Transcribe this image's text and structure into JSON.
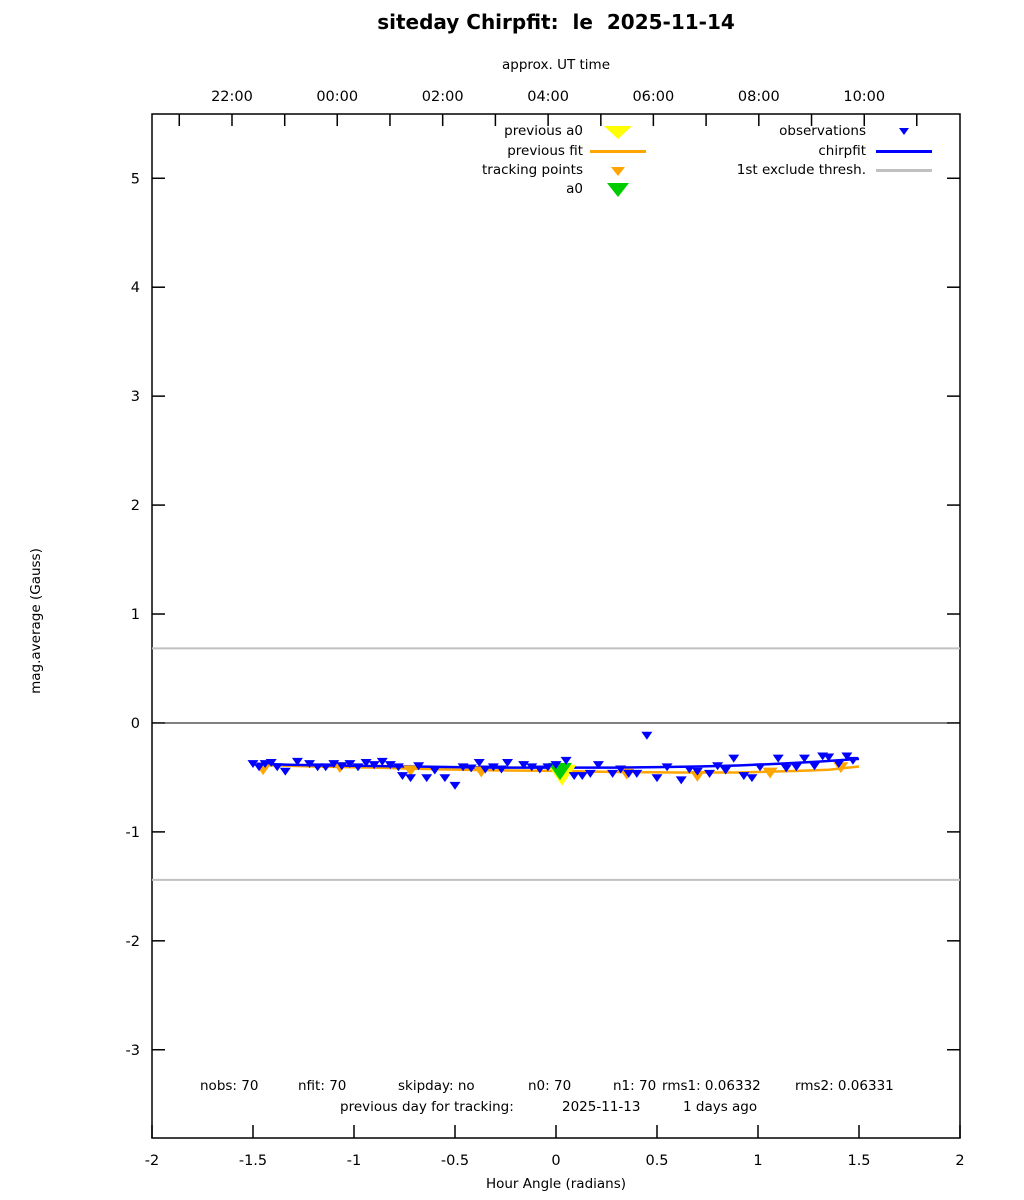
{
  "chart_data": {
    "type": "scatter",
    "title": "siteday Chirpfit:  le  2025-11-14",
    "xlabel": "Hour Angle (radians)",
    "ylabel": "mag.average (Gauss)",
    "x2label": "approx. UT time",
    "xlim": [
      -2,
      2
    ],
    "ylim": [
      -3.81,
      5.59
    ],
    "grid": false,
    "xticks": [
      {
        "v": -2,
        "label": "-2"
      },
      {
        "v": -1.5,
        "label": "-1.5"
      },
      {
        "v": -1,
        "label": "-1"
      },
      {
        "v": -0.5,
        "label": "-0.5"
      },
      {
        "v": 0,
        "label": "0"
      },
      {
        "v": 0.5,
        "label": "0.5"
      },
      {
        "v": 1,
        "label": "1"
      },
      {
        "v": 1.5,
        "label": "1.5"
      },
      {
        "v": 2,
        "label": "2"
      }
    ],
    "yticks": [
      {
        "v": 5,
        "label": "5"
      },
      {
        "v": 4,
        "label": "4"
      },
      {
        "v": 3,
        "label": "3"
      },
      {
        "v": 2,
        "label": "2"
      },
      {
        "v": 1,
        "label": "1"
      },
      {
        "v": 0,
        "label": "0"
      },
      {
        "v": -1,
        "label": "-1"
      },
      {
        "v": -2,
        "label": "-2"
      },
      {
        "v": -3,
        "label": "-3"
      }
    ],
    "x2ticks": [
      {
        "ha": -1.865,
        "label": ""
      },
      {
        "ha": -1.604,
        "label": "22:00"
      },
      {
        "ha": -1.343,
        "label": ""
      },
      {
        "ha": -1.083,
        "label": "00:00"
      },
      {
        "ha": -0.822,
        "label": ""
      },
      {
        "ha": -0.561,
        "label": "02:00"
      },
      {
        "ha": -0.3,
        "label": ""
      },
      {
        "ha": -0.039,
        "label": "04:00"
      },
      {
        "ha": 0.222,
        "label": ""
      },
      {
        "ha": 0.482,
        "label": "06:00"
      },
      {
        "ha": 0.743,
        "label": ""
      },
      {
        "ha": 1.004,
        "label": "08:00"
      },
      {
        "ha": 1.265,
        "label": ""
      },
      {
        "ha": 1.526,
        "label": "10:00"
      },
      {
        "ha": 1.786,
        "label": ""
      }
    ],
    "series": [
      {
        "name": "1st exclude thresh.",
        "type": "hline",
        "color": "#c0c0c0",
        "width": 2,
        "y": [
          0.685,
          -1.44
        ]
      },
      {
        "name": "zero axis",
        "type": "hline",
        "color": "#000000",
        "width": 1,
        "y": [
          0
        ]
      },
      {
        "name": "previous fit",
        "type": "line",
        "color": "#ffa500",
        "width": 2.5,
        "points": [
          [
            -1.48,
            -0.385
          ],
          [
            -1.2,
            -0.4
          ],
          [
            -0.9,
            -0.41
          ],
          [
            -0.6,
            -0.425
          ],
          [
            -0.3,
            -0.435
          ],
          [
            0,
            -0.44
          ],
          [
            0.3,
            -0.45
          ],
          [
            0.6,
            -0.455
          ],
          [
            0.9,
            -0.455
          ],
          [
            1.2,
            -0.44
          ],
          [
            1.35,
            -0.43
          ],
          [
            1.5,
            -0.4
          ]
        ]
      },
      {
        "name": "chirpfit",
        "type": "line",
        "color": "#0000ff",
        "width": 2.5,
        "points": [
          [
            -1.48,
            -0.375
          ],
          [
            -1.3,
            -0.385
          ],
          [
            -1.1,
            -0.39
          ],
          [
            -0.9,
            -0.395
          ],
          [
            -0.7,
            -0.4
          ],
          [
            -0.5,
            -0.405
          ],
          [
            -0.3,
            -0.41
          ],
          [
            -0.1,
            -0.41
          ],
          [
            0.1,
            -0.41
          ],
          [
            0.3,
            -0.41
          ],
          [
            0.5,
            -0.405
          ],
          [
            0.7,
            -0.4
          ],
          [
            0.9,
            -0.39
          ],
          [
            1.1,
            -0.375
          ],
          [
            1.3,
            -0.355
          ],
          [
            1.5,
            -0.33
          ]
        ]
      },
      {
        "name": "previous a0",
        "type": "scatter",
        "marker": "triangle-down",
        "color": "#ffff00",
        "size": 29,
        "points": [
          [
            0.03,
            -0.46
          ]
        ]
      },
      {
        "name": "a0",
        "type": "scatter",
        "marker": "triangle-down",
        "color": "#00cc00",
        "size": 24,
        "points": [
          [
            0.02,
            -0.43
          ]
        ]
      },
      {
        "name": "tracking points",
        "type": "scatter",
        "marker": "triangle-down",
        "color": "#ffa500",
        "size": 15,
        "points": [
          [
            -1.45,
            -0.42
          ],
          [
            -1.07,
            -0.4
          ],
          [
            -0.72,
            -0.43
          ],
          [
            -0.37,
            -0.44
          ],
          [
            0.35,
            -0.46
          ],
          [
            0.7,
            -0.48
          ],
          [
            1.06,
            -0.45
          ],
          [
            1.41,
            -0.4
          ]
        ]
      },
      {
        "name": "observations",
        "type": "scatter",
        "marker": "triangle-down",
        "color": "#0000ff",
        "size": 11,
        "points": [
          [
            -1.5,
            -0.37
          ],
          [
            -1.47,
            -0.4
          ],
          [
            -1.44,
            -0.37
          ],
          [
            -1.41,
            -0.36
          ],
          [
            -1.38,
            -0.4
          ],
          [
            -1.34,
            -0.44
          ],
          [
            -1.28,
            -0.35
          ],
          [
            -1.22,
            -0.37
          ],
          [
            -1.18,
            -0.4
          ],
          [
            -1.14,
            -0.4
          ],
          [
            -1.1,
            -0.37
          ],
          [
            -1.06,
            -0.39
          ],
          [
            -1.02,
            -0.37
          ],
          [
            -0.98,
            -0.4
          ],
          [
            -0.94,
            -0.36
          ],
          [
            -0.9,
            -0.38
          ],
          [
            -0.86,
            -0.35
          ],
          [
            -0.82,
            -0.38
          ],
          [
            -0.78,
            -0.4
          ],
          [
            -0.76,
            -0.48
          ],
          [
            -0.72,
            -0.5
          ],
          [
            -0.68,
            -0.39
          ],
          [
            -0.64,
            -0.5
          ],
          [
            -0.6,
            -0.43
          ],
          [
            -0.55,
            -0.5
          ],
          [
            -0.5,
            -0.57
          ],
          [
            -0.46,
            -0.4
          ],
          [
            -0.42,
            -0.41
          ],
          [
            -0.38,
            -0.36
          ],
          [
            -0.35,
            -0.42
          ],
          [
            -0.31,
            -0.4
          ],
          [
            -0.27,
            -0.42
          ],
          [
            -0.24,
            -0.36
          ],
          [
            -0.16,
            -0.38
          ],
          [
            -0.12,
            -0.4
          ],
          [
            -0.08,
            -0.42
          ],
          [
            -0.04,
            -0.4
          ],
          [
            0.0,
            -0.38
          ],
          [
            0.05,
            -0.34
          ],
          [
            0.09,
            -0.48
          ],
          [
            0.13,
            -0.48
          ],
          [
            0.17,
            -0.46
          ],
          [
            0.21,
            -0.38
          ],
          [
            0.28,
            -0.46
          ],
          [
            0.32,
            -0.42
          ],
          [
            0.36,
            -0.46
          ],
          [
            0.4,
            -0.46
          ],
          [
            0.45,
            -0.11
          ],
          [
            0.5,
            -0.5
          ],
          [
            0.55,
            -0.4
          ],
          [
            0.62,
            -0.52
          ],
          [
            0.66,
            -0.42
          ],
          [
            0.7,
            -0.44
          ],
          [
            0.76,
            -0.46
          ],
          [
            0.8,
            -0.39
          ],
          [
            0.84,
            -0.43
          ],
          [
            0.88,
            -0.32
          ],
          [
            0.93,
            -0.48
          ],
          [
            0.97,
            -0.5
          ],
          [
            1.01,
            -0.4
          ],
          [
            1.1,
            -0.32
          ],
          [
            1.14,
            -0.41
          ],
          [
            1.19,
            -0.4
          ],
          [
            1.23,
            -0.32
          ],
          [
            1.28,
            -0.39
          ],
          [
            1.32,
            -0.3
          ],
          [
            1.35,
            -0.31
          ],
          [
            1.4,
            -0.37
          ],
          [
            1.44,
            -0.3
          ],
          [
            1.47,
            -0.34
          ]
        ]
      }
    ],
    "legend_position": "top-inside",
    "legend": {
      "items": [
        {
          "label": "previous a0"
        },
        {
          "label": "previous fit"
        },
        {
          "label": "tracking points"
        },
        {
          "label": "a0"
        },
        {
          "label": "observations"
        },
        {
          "label": "chirpfit"
        },
        {
          "label": "1st exclude thresh."
        }
      ]
    }
  },
  "footer": {
    "nobs": "nobs: 70",
    "nfit": "nfit: 70",
    "skipday": "skipday: no",
    "n0": "n0: 70",
    "n1": "n1: 70",
    "rms1": "rms1: 0.06332",
    "rms2": "rms2: 0.06331",
    "prev_label": "previous day for tracking:",
    "prev_date": "2025-11-13",
    "prev_ago": "1 days ago"
  },
  "colors": {
    "observations": "#0000ff",
    "chirpfit": "#0000ff",
    "previous_fit": "#ffa500",
    "tracking_points": "#ffa500",
    "previous_a0": "#ffff00",
    "a0": "#00cc00",
    "exclude_threshold": "#c0c0c0",
    "axis": "#000000"
  }
}
